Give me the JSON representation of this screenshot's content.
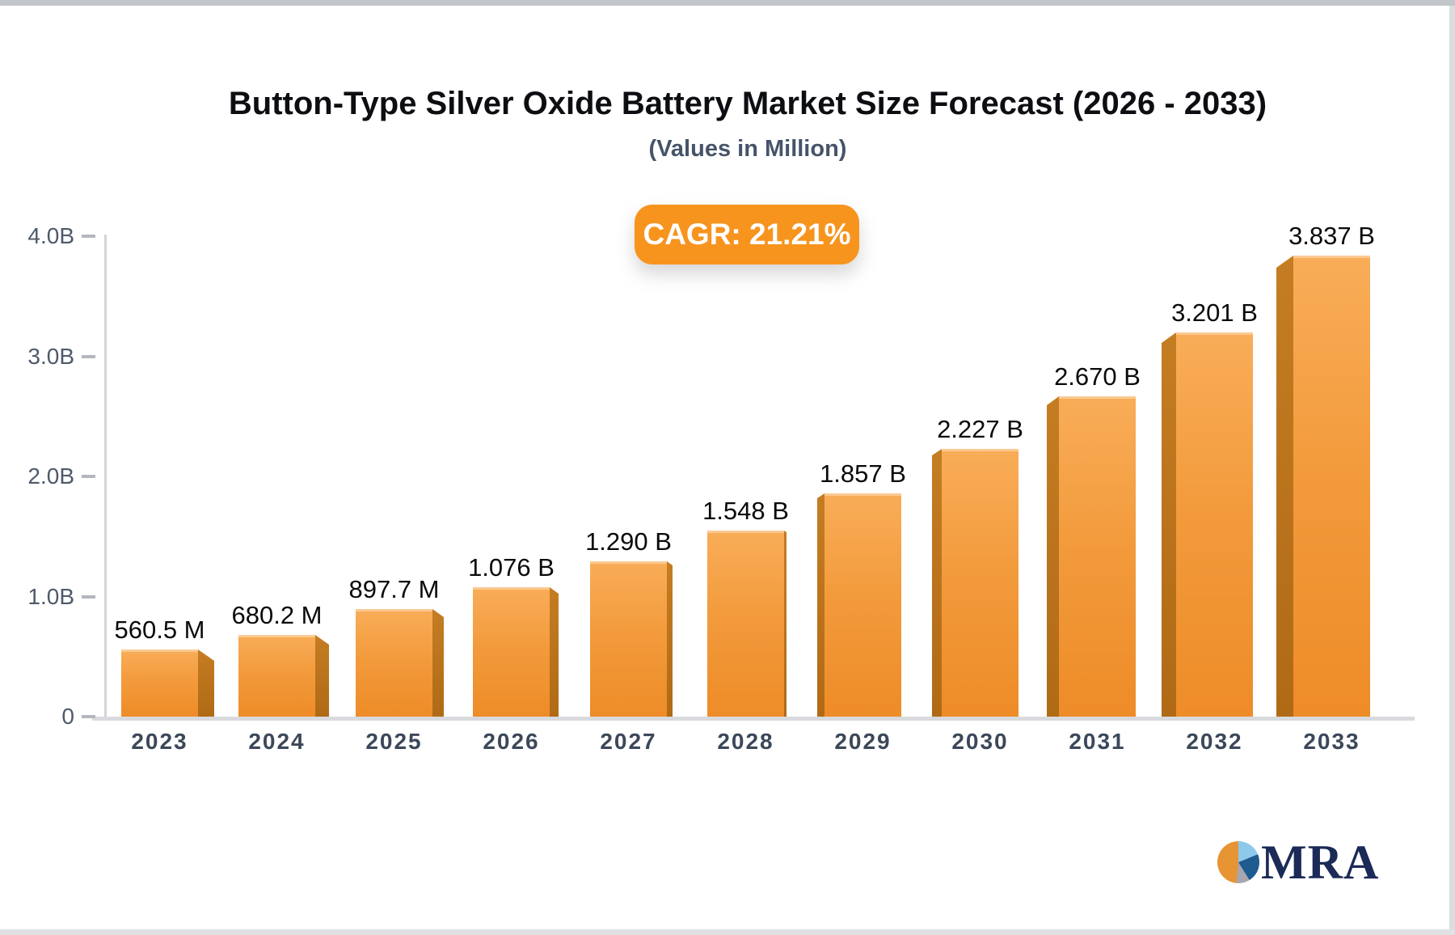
{
  "header": {
    "title": "Button-Type Silver Oxide Battery Market Size Forecast (2026 - 2033)",
    "subtitle": "(Values in Million)"
  },
  "badge": {
    "label": "CAGR: 21.21%",
    "color": "#F7941E"
  },
  "logo": {
    "text": "MRA"
  },
  "chart_data": {
    "type": "bar",
    "title": "Button-Type Silver Oxide Battery Market Size Forecast (2026 - 2033)",
    "subtitle": "(Values in Million)",
    "annotation": "CAGR: 21.21%",
    "categories": [
      "2023",
      "2024",
      "2025",
      "2026",
      "2027",
      "2028",
      "2029",
      "2030",
      "2031",
      "2032",
      "2033"
    ],
    "values": [
      0.5605,
      0.6802,
      0.8977,
      1.076,
      1.29,
      1.548,
      1.857,
      2.227,
      2.67,
      3.201,
      3.837
    ],
    "value_labels": [
      "560.5 M",
      "680.2 M",
      "897.7 M",
      "1.076 B",
      "1.290 B",
      "1.548 B",
      "1.857 B",
      "2.227 B",
      "2.670 B",
      "3.201 B",
      "3.837 B"
    ],
    "y_ticks": [
      {
        "label": "4.0B",
        "value": 4
      },
      {
        "label": "3.0B",
        "value": 3
      },
      {
        "label": "2.0B",
        "value": 2
      },
      {
        "label": "1.0B",
        "value": 1
      },
      {
        "label": "0",
        "value": 0
      }
    ],
    "ylim": [
      0,
      4
    ],
    "xlabel": "",
    "ylabel": "",
    "grid": false,
    "legend": false,
    "bar_color": "#F29A3B",
    "bar_side_color": "#B56C1B",
    "axis_color": "#D2D4D8",
    "label_color": "#3C4859"
  }
}
